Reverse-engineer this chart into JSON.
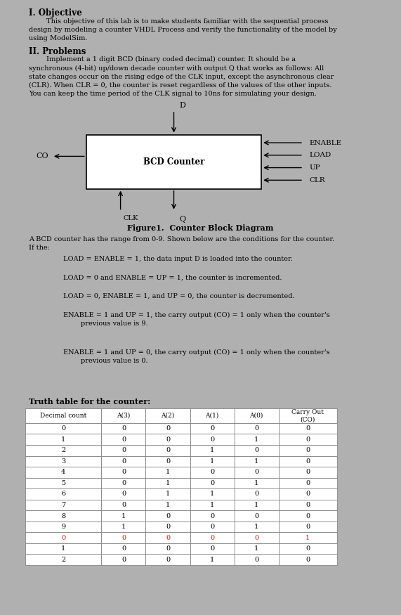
{
  "page_bg": "#b0b0b0",
  "page1_bg": "#ffffff",
  "page2_bg": "#ffffff",
  "title1": "I. Objective",
  "para1": "        This objective of this lab is to make students familiar with the sequential process\ndesign by modeling a counter VHDL Process and verify the functionality of the model by\nusing ModelSim.",
  "title2": "II. Problems",
  "para2": "        Implement a 1 digit BCD (binary coded decimal) counter. It should be a\nsynchronous (4-bit) up/down decade counter with output Q that works as follows: All\nstate changes occur on the rising edge of the CLK input, except the asynchronous clear\n(CLR). When CLR = 0, the counter is reset regardless of the values of the other inputs.\nYou can keep the time period of the CLK signal to 10ns for simulating your design.",
  "figure_caption": "Figure1.  Counter Block Diagram",
  "bcd_label": "BCD Counter",
  "co_label": "CO",
  "d_label": "D",
  "clk_label": "CLK",
  "q_label": "Q",
  "enable_label": "ENABLE",
  "load_label": "LOAD",
  "up_label": "UP",
  "clr_label": "CLR",
  "para3": "A BCD counter has the range from 0-9. Shown below are the conditions for the counter.\nIf the:",
  "conditions": [
    "LOAD = ENABLE = 1, the data input D is loaded into the counter.",
    "LOAD = 0 and ENABLE = UP = 1, the counter is incremented.",
    "LOAD = 0, ENABLE = 1, and UP = 0, the counter is decremented.",
    "ENABLE = 1 and UP = 1, the carry output (CO) = 1 only when the counter's\n        previous value is 9.",
    "ENABLE = 1 and UP = 0, the carry output (CO) = 1 only when the counter's\n        previous value is 0."
  ],
  "table_title": "Truth table for the counter:",
  "table_headers": [
    "Decimal count",
    "A(3)",
    "A(2)",
    "A(1)",
    "A(0)",
    "Carry Out\n(CO)"
  ],
  "table_data": [
    [
      "0",
      "0",
      "0",
      "0",
      "0",
      "0"
    ],
    [
      "1",
      "0",
      "0",
      "0",
      "1",
      "0"
    ],
    [
      "2",
      "0",
      "0",
      "1",
      "0",
      "0"
    ],
    [
      "3",
      "0",
      "0",
      "1",
      "1",
      "0"
    ],
    [
      "4",
      "0",
      "1",
      "0",
      "0",
      "0"
    ],
    [
      "5",
      "0",
      "1",
      "0",
      "1",
      "0"
    ],
    [
      "6",
      "0",
      "1",
      "1",
      "0",
      "0"
    ],
    [
      "7",
      "0",
      "1",
      "1",
      "1",
      "0"
    ],
    [
      "8",
      "1",
      "0",
      "0",
      "0",
      "0"
    ],
    [
      "9",
      "1",
      "0",
      "0",
      "1",
      "0"
    ],
    [
      "0",
      "0",
      "0",
      "0",
      "0",
      "1"
    ],
    [
      "1",
      "0",
      "0",
      "0",
      "1",
      "0"
    ],
    [
      "2",
      "0",
      "0",
      "1",
      "0",
      "0"
    ]
  ],
  "red_row": 10,
  "red_color": "#cc2200",
  "black_color": "#000000"
}
